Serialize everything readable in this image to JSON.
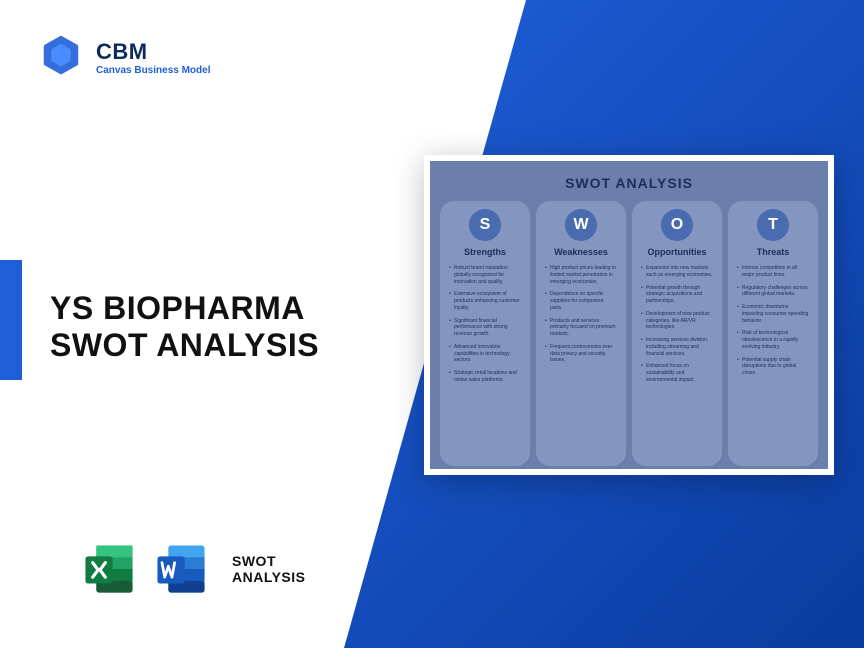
{
  "logo": {
    "brand": "CBM",
    "sub": "Canvas Business Model"
  },
  "headline_line1": "YS BIOPHARMA",
  "headline_line2": "SWOT ANALYSIS",
  "footer": {
    "line1": "SWOT",
    "line2": "ANALYSIS"
  },
  "colors": {
    "primary": "#1e5fd9",
    "deep": "#0a3b9e",
    "cardBg": "#6b7fad",
    "colBg": "#8296bf",
    "circle": "#4a6bb0",
    "textDark": "#1a2e5c",
    "excel": "#107c41",
    "excelLight": "#21a366",
    "word": "#2b579a",
    "wordLight": "#41a5ee"
  },
  "card": {
    "title": "SWOT ANALYSIS",
    "columns": [
      {
        "letter": "S",
        "heading": "Strengths",
        "items": [
          "Robust brand reputation globally recognized for innovation and quality.",
          "Extensive ecosystem of products enhancing customer loyalty.",
          "Significant financial performance with strong revenue growth.",
          "Advanced innovation capabilities in technology sectors.",
          "Strategic retail locations and online sales platforms."
        ]
      },
      {
        "letter": "W",
        "heading": "Weaknesses",
        "items": [
          "High product prices leading to limited market penetration in emerging economies.",
          "Dependence on specific suppliers for component parts.",
          "Products and services primarily focused on premium markets.",
          "Frequent controversies over data privacy and security issues."
        ]
      },
      {
        "letter": "O",
        "heading": "Opportunities",
        "items": [
          "Expansion into new markets such as emerging economies.",
          "Potential growth through strategic acquisitions and partnerships.",
          "Development of new product categories, like AR/VR technologies.",
          "Increasing services division, including streaming and financial services.",
          "Enhanced focus on sustainability and environmental impact."
        ]
      },
      {
        "letter": "T",
        "heading": "Threats",
        "items": [
          "Intense competition in all major product lines.",
          "Regulatory challenges across different global markets.",
          "Economic downturns impacting consumer spending behavior.",
          "Risk of technological obsolescence in a rapidly evolving industry.",
          "Potential supply chain disruptions due to global crises."
        ]
      }
    ]
  }
}
